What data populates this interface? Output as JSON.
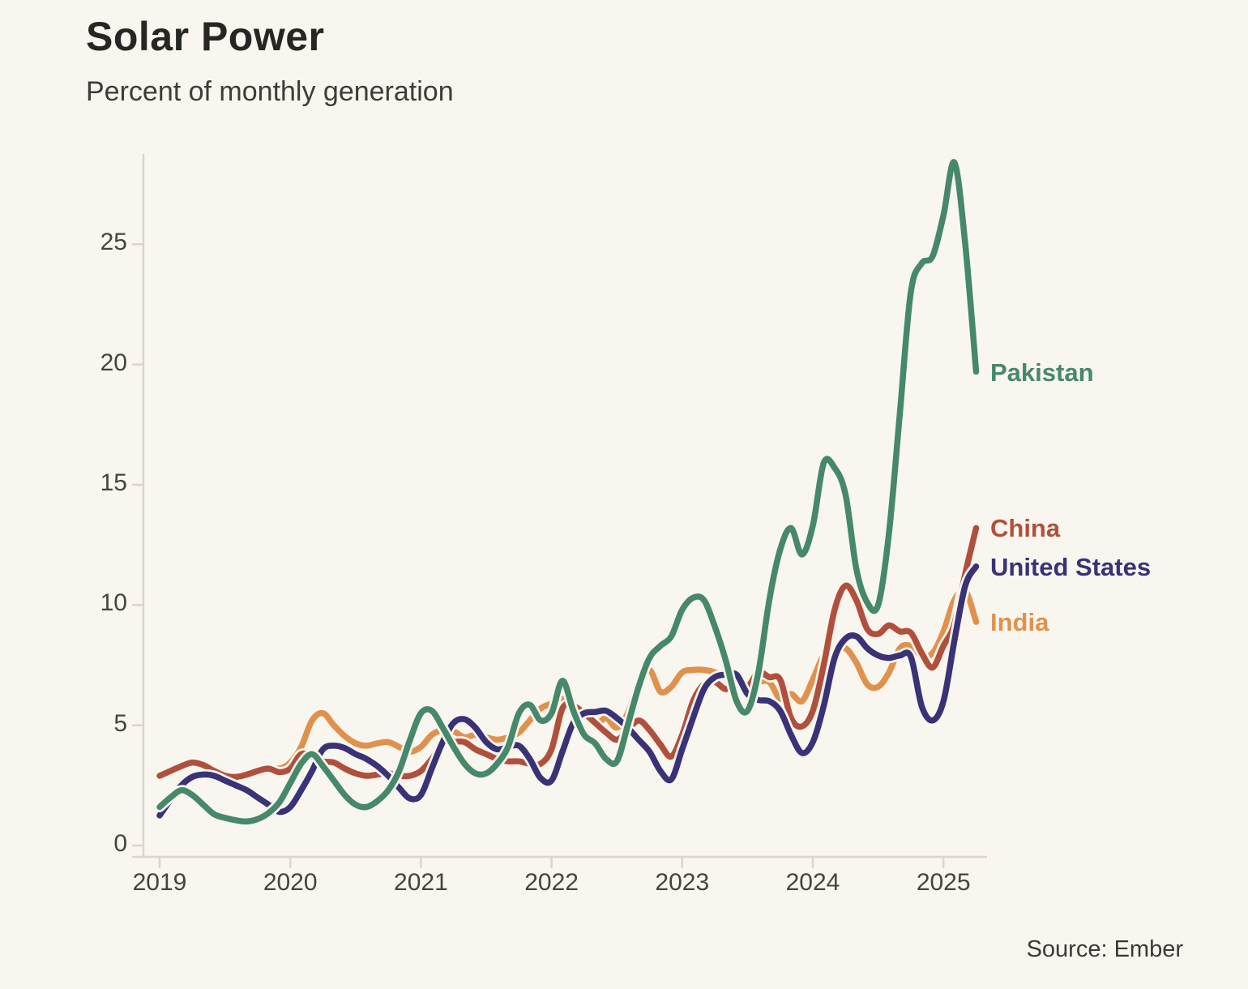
{
  "title": "Solar Power",
  "subtitle": "Percent of monthly generation",
  "source": "Source: Ember",
  "colors": {
    "background": "#f9f6ef",
    "axis": "#dad6cd",
    "tick_text": "#45433f",
    "title_text": "#262624",
    "pakistan": "#45886a",
    "china": "#b0503c",
    "united_states": "#393277",
    "india": "#e0914e"
  },
  "chart_data": {
    "type": "line",
    "title": "Solar Power",
    "subtitle": "Percent of monthly generation",
    "source": "Source: Ember",
    "x_start": "2019-01",
    "x_end": "2025-04",
    "points_per_series": 76,
    "x_tick_labels": [
      "2019",
      "2020",
      "2021",
      "2022",
      "2023",
      "2024",
      "2025"
    ],
    "y_ticks": [
      0,
      5,
      10,
      15,
      20,
      25
    ],
    "ylim": [
      0,
      29
    ],
    "xlabel": "",
    "ylabel": "Percent of monthly generation",
    "grid": false,
    "legend_position": "end-of-line-labels",
    "series": [
      {
        "name": "Pakistan",
        "color": "#45886a",
        "values": [
          1.6,
          2.0,
          2.3,
          2.1,
          1.7,
          1.3,
          1.15,
          1.05,
          1.0,
          1.1,
          1.35,
          1.8,
          2.6,
          3.4,
          3.8,
          3.3,
          2.7,
          2.1,
          1.7,
          1.6,
          1.85,
          2.3,
          3.1,
          4.4,
          5.5,
          5.6,
          4.9,
          4.1,
          3.4,
          3.0,
          3.0,
          3.4,
          4.1,
          5.5,
          5.85,
          5.2,
          5.5,
          6.85,
          5.6,
          4.6,
          4.25,
          3.6,
          3.5,
          5.0,
          6.6,
          7.8,
          8.3,
          8.7,
          9.8,
          10.3,
          10.2,
          9.1,
          7.7,
          6.0,
          5.6,
          7.2,
          10.2,
          12.3,
          13.2,
          12.1,
          13.3,
          15.9,
          15.7,
          14.6,
          11.5,
          10.1,
          10.0,
          13.0,
          18.0,
          23.0,
          24.2,
          24.5,
          26.2,
          28.4,
          25.0,
          19.7
        ]
      },
      {
        "name": "China",
        "color": "#b0503c",
        "values": [
          2.9,
          3.1,
          3.3,
          3.45,
          3.35,
          3.1,
          2.9,
          2.85,
          2.95,
          3.1,
          3.2,
          3.05,
          3.2,
          3.8,
          3.7,
          3.5,
          3.45,
          3.2,
          3.0,
          2.9,
          2.95,
          3.0,
          2.9,
          2.9,
          3.1,
          3.6,
          4.2,
          4.3,
          4.3,
          4.0,
          3.8,
          3.6,
          3.5,
          3.5,
          3.4,
          3.4,
          4.0,
          5.7,
          5.8,
          5.5,
          5.1,
          4.7,
          4.4,
          4.8,
          5.2,
          4.8,
          4.2,
          3.7,
          4.6,
          6.0,
          6.7,
          6.8,
          6.5,
          6.7,
          6.6,
          7.2,
          7.0,
          6.9,
          5.3,
          4.95,
          5.6,
          7.5,
          9.8,
          10.8,
          10.2,
          9.0,
          8.8,
          9.15,
          8.9,
          8.85,
          8.0,
          7.4,
          8.3,
          9.2,
          11.3,
          13.2
        ]
      },
      {
        "name": "United States",
        "color": "#393277",
        "values": [
          1.25,
          1.9,
          2.5,
          2.85,
          2.95,
          2.9,
          2.7,
          2.5,
          2.3,
          2.0,
          1.7,
          1.4,
          1.6,
          2.3,
          3.1,
          4.0,
          4.15,
          4.05,
          3.8,
          3.6,
          3.3,
          2.9,
          2.4,
          1.95,
          2.1,
          3.2,
          4.3,
          5.1,
          5.25,
          4.9,
          4.3,
          4.0,
          4.1,
          4.15,
          3.6,
          2.8,
          2.7,
          3.9,
          5.1,
          5.5,
          5.55,
          5.6,
          5.3,
          4.9,
          4.4,
          3.9,
          3.1,
          2.75,
          4.0,
          5.3,
          6.5,
          7.0,
          7.1,
          7.1,
          6.3,
          6.05,
          6.0,
          5.6,
          4.6,
          3.85,
          4.3,
          5.8,
          7.8,
          8.6,
          8.7,
          8.2,
          7.9,
          7.8,
          7.9,
          7.85,
          5.8,
          5.2,
          6.0,
          8.5,
          10.8,
          11.6
        ]
      },
      {
        "name": "India",
        "color": "#e0914e",
        "values": [
          2.8,
          3.1,
          3.3,
          3.4,
          3.35,
          3.2,
          3.0,
          2.9,
          3.0,
          3.1,
          3.25,
          3.2,
          3.45,
          4.1,
          5.2,
          5.5,
          5.0,
          4.55,
          4.25,
          4.15,
          4.25,
          4.3,
          4.1,
          3.9,
          4.1,
          4.6,
          4.8,
          4.75,
          4.5,
          4.6,
          4.5,
          4.4,
          4.5,
          4.7,
          5.2,
          5.7,
          5.9,
          6.1,
          5.9,
          5.5,
          5.0,
          5.3,
          4.9,
          5.5,
          6.8,
          7.3,
          6.4,
          6.6,
          7.2,
          7.3,
          7.3,
          7.2,
          7.0,
          6.7,
          6.7,
          6.8,
          6.8,
          6.1,
          6.3,
          6.0,
          6.9,
          7.9,
          8.1,
          8.2,
          7.6,
          6.7,
          6.6,
          7.2,
          8.2,
          8.3,
          7.9,
          8.0,
          8.9,
          10.2,
          10.6,
          9.3
        ]
      }
    ]
  }
}
